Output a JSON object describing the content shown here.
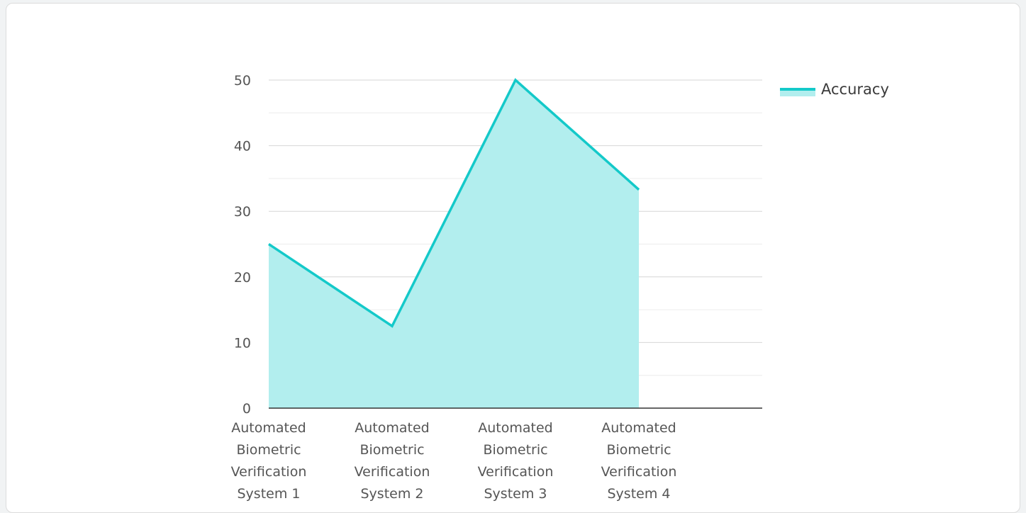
{
  "colors": {
    "line": "#14c9c9",
    "fill": "#b2eeee",
    "grid": "#d6d6d6",
    "gridMinor": "#ececec",
    "axis": "#333333"
  },
  "chart_data": {
    "type": "area",
    "categories": [
      [
        "Automated",
        "Biometric",
        "Verification",
        "System 1"
      ],
      [
        "Automated",
        "Biometric",
        "Verification",
        "System 2"
      ],
      [
        "Automated",
        "Biometric",
        "Verification",
        "System 3"
      ],
      [
        "Automated",
        "Biometric",
        "Verification",
        "System 4"
      ]
    ],
    "series": [
      {
        "name": "Accuracy",
        "values": [
          25,
          12.5,
          50,
          33.3
        ]
      }
    ],
    "ylim": [
      0,
      50
    ],
    "yticks": [
      0,
      10,
      20,
      30,
      40,
      50
    ],
    "minor_gridlines": true,
    "legend": "top-right",
    "xlabel": "",
    "ylabel": ""
  }
}
